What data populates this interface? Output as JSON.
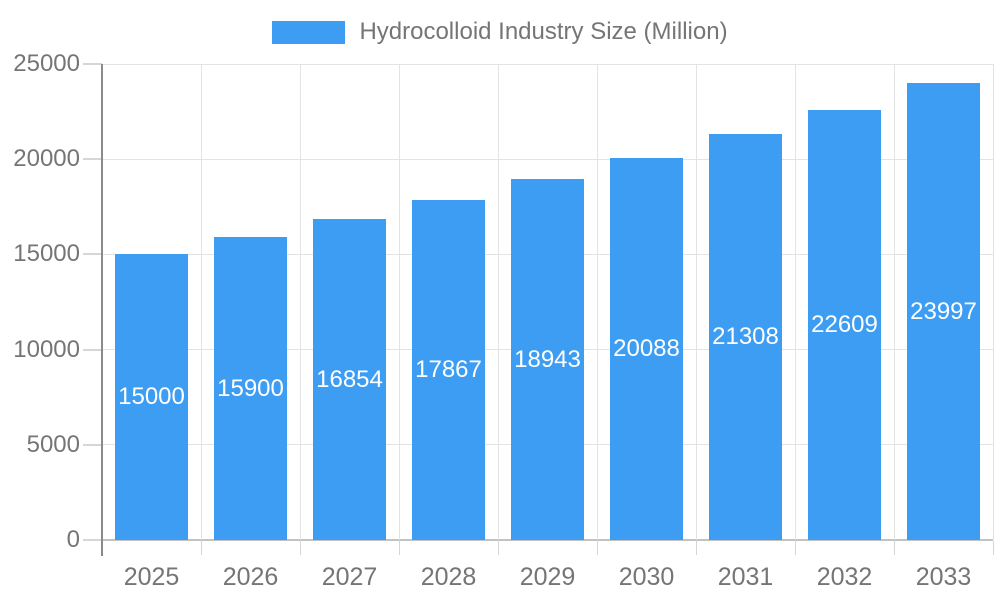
{
  "chart_data": {
    "type": "bar",
    "title": "Hydrocolloid Industry Size (Million)",
    "categories": [
      "2025",
      "2026",
      "2027",
      "2028",
      "2029",
      "2030",
      "2031",
      "2032",
      "2033"
    ],
    "values": [
      15000,
      15900,
      16854,
      17867,
      18943,
      20088,
      21308,
      22609,
      23997
    ],
    "series": [
      {
        "name": "Hydrocolloid Industry Size (Million)",
        "values": [
          15000,
          15900,
          16854,
          17867,
          18943,
          20088,
          21308,
          22609,
          23997
        ]
      }
    ],
    "xlabel": "",
    "ylabel": "",
    "ylim": [
      0,
      25000
    ],
    "y_ticks": [
      0,
      5000,
      10000,
      15000,
      20000,
      25000
    ],
    "grid": true,
    "legend_position": "top",
    "colors": {
      "bar": "#3D9DF3",
      "value_label": "#FFFFFF",
      "axis_text": "#757575",
      "grid_line": "#E3E3E3",
      "baseline": "#C2C2C2",
      "axis_line": "#8A8A8A",
      "tick": "#D6D6D6"
    }
  }
}
